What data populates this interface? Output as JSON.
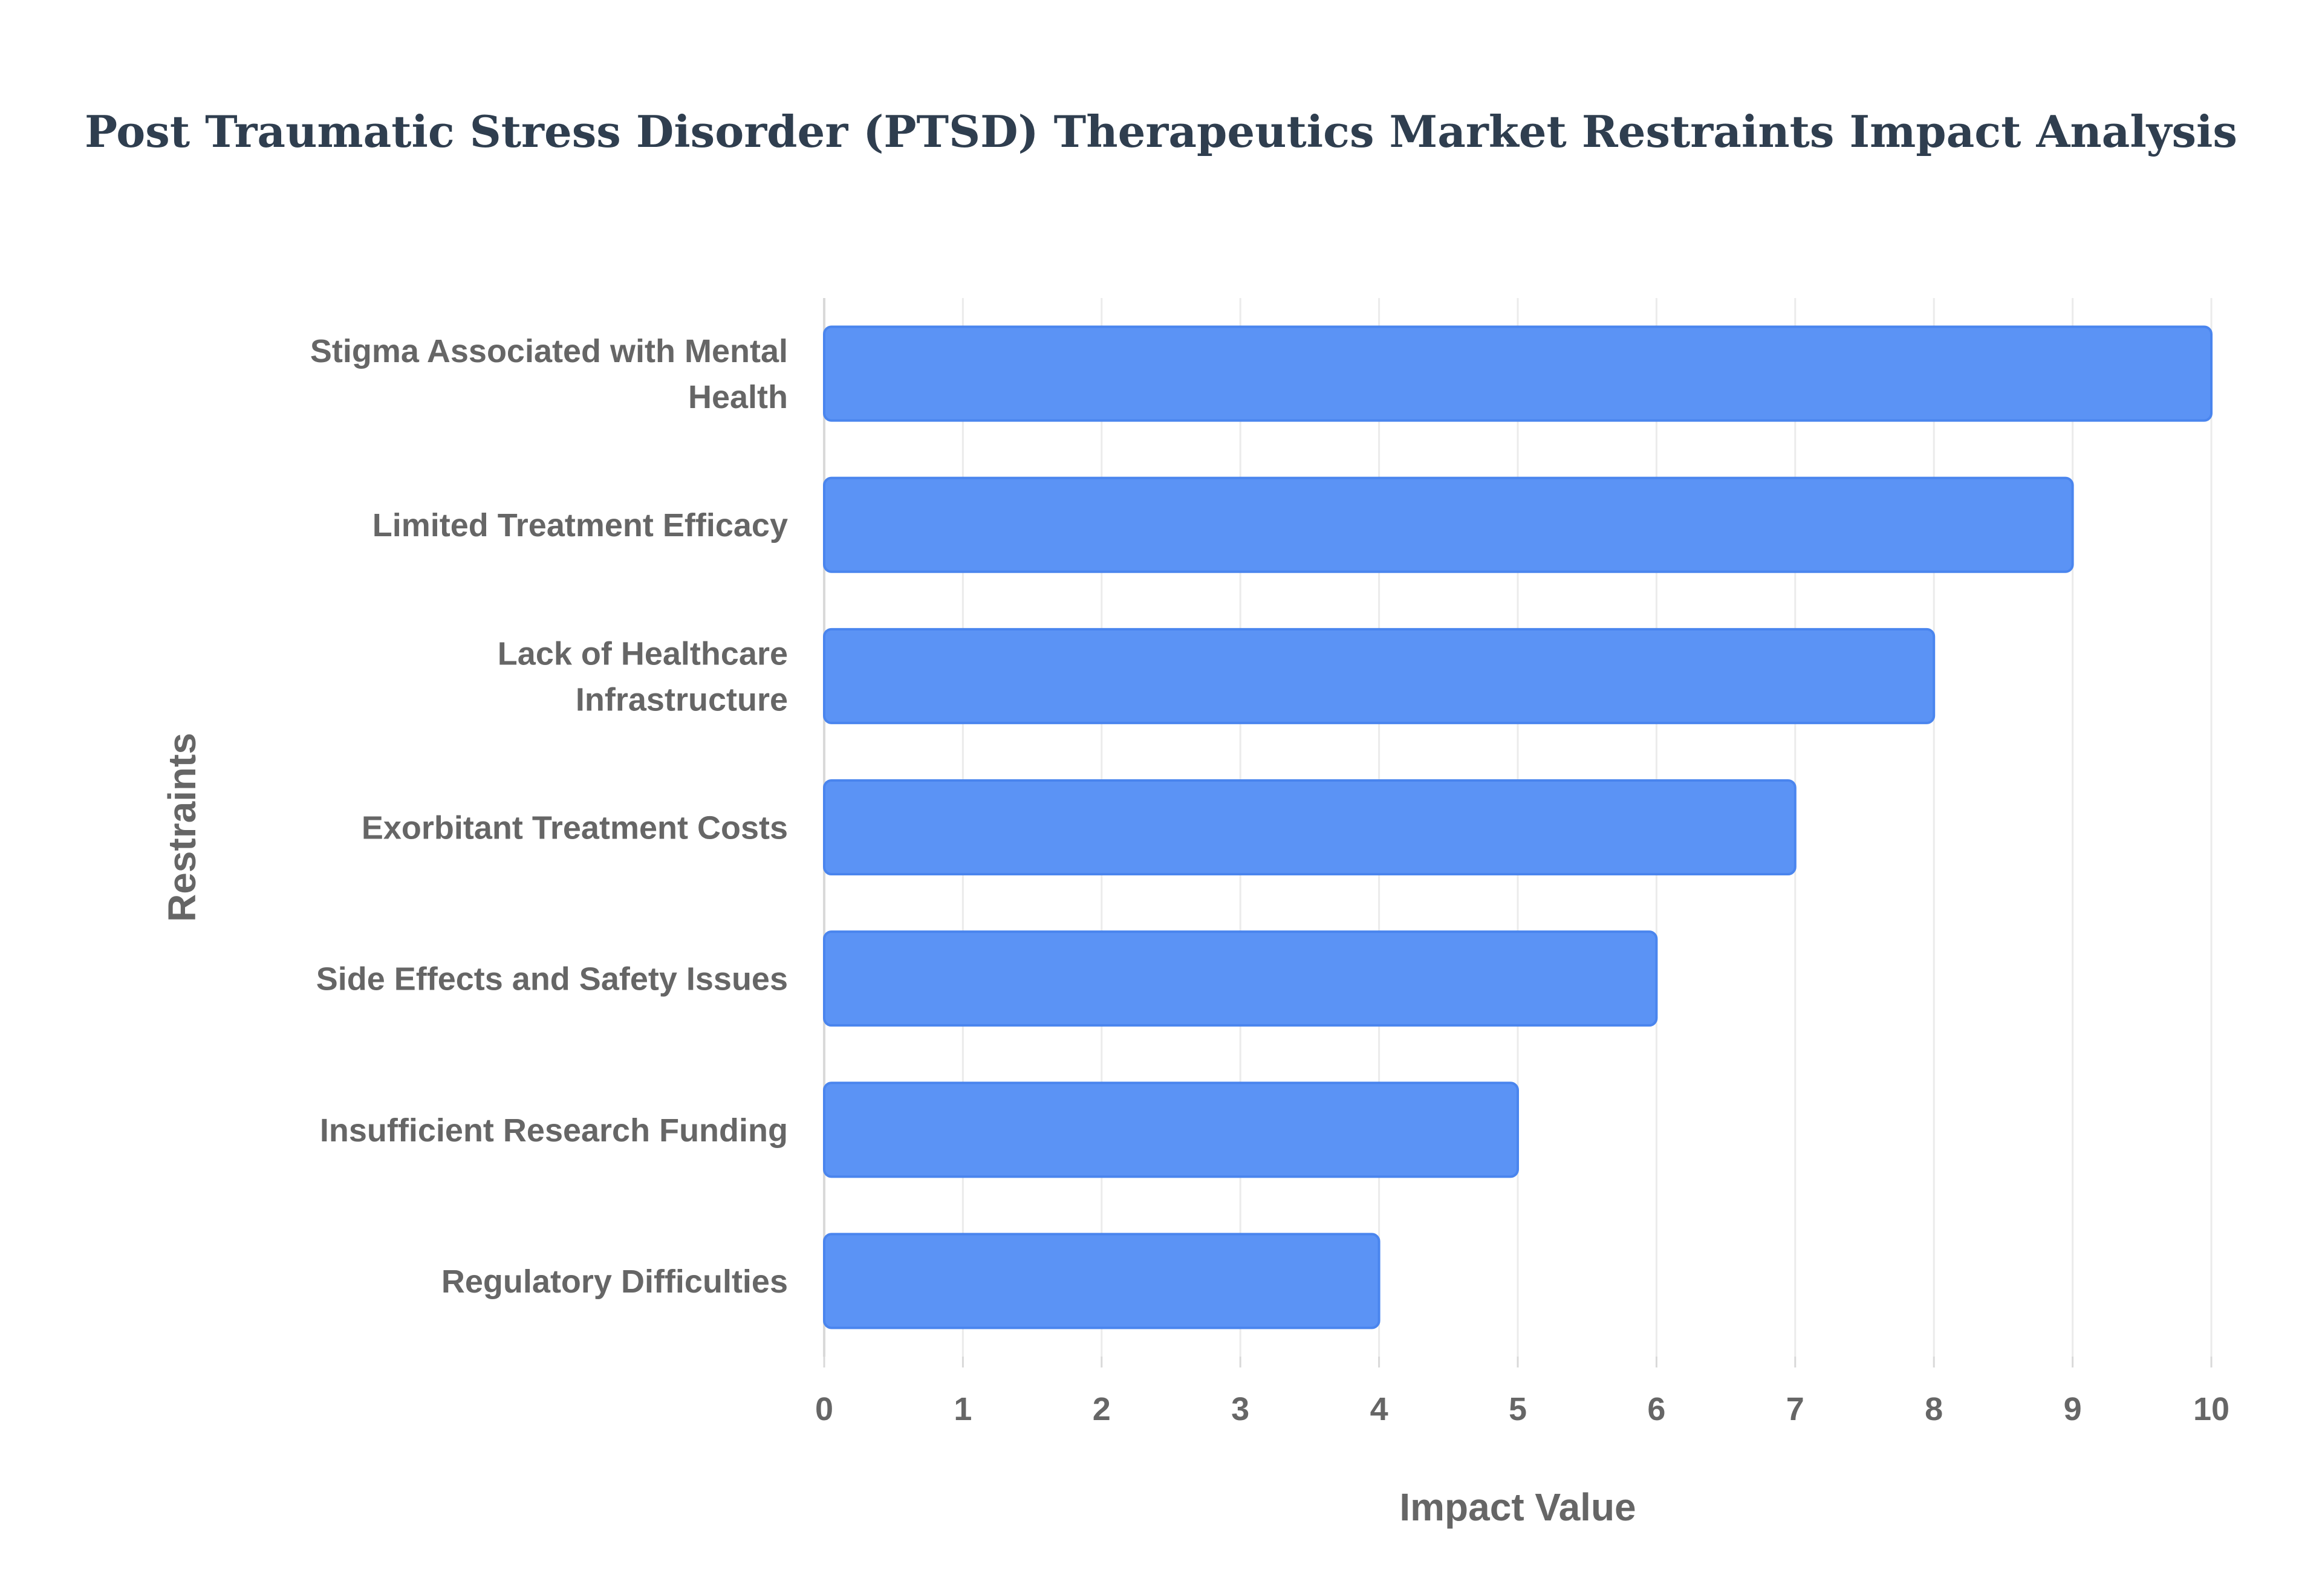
{
  "chart_data": {
    "type": "bar",
    "orientation": "horizontal",
    "title": "Post Traumatic Stress Disorder (PTSD) Therapeutics Market Restraints Impact Analysis",
    "xlabel": "Impact Value",
    "ylabel": "Restraints",
    "categories": [
      "Stigma Associated with Mental Health",
      "Limited Treatment Efficacy",
      "Lack of Healthcare Infrastructure",
      "Exorbitant Treatment Costs",
      "Side Effects and Safety Issues",
      "Insufficient Research Funding",
      "Regulatory Difficulties"
    ],
    "category_lines": [
      [
        "Stigma Associated with Mental",
        "Health"
      ],
      [
        "Limited Treatment Efficacy"
      ],
      [
        "Lack of Healthcare",
        "Infrastructure"
      ],
      [
        "Exorbitant Treatment Costs"
      ],
      [
        "Side Effects and Safety Issues"
      ],
      [
        "Insufficient Research Funding"
      ],
      [
        "Regulatory Difficulties"
      ]
    ],
    "values": [
      10,
      9,
      8,
      7,
      6,
      5,
      4
    ],
    "xlim": [
      0,
      10
    ],
    "xticks": [
      "0",
      "1",
      "2",
      "3",
      "4",
      "5",
      "6",
      "7",
      "8",
      "9",
      "10"
    ],
    "grid": true,
    "bar_color": "#5b93f5",
    "bar_edge_color": "#4a85ee"
  }
}
